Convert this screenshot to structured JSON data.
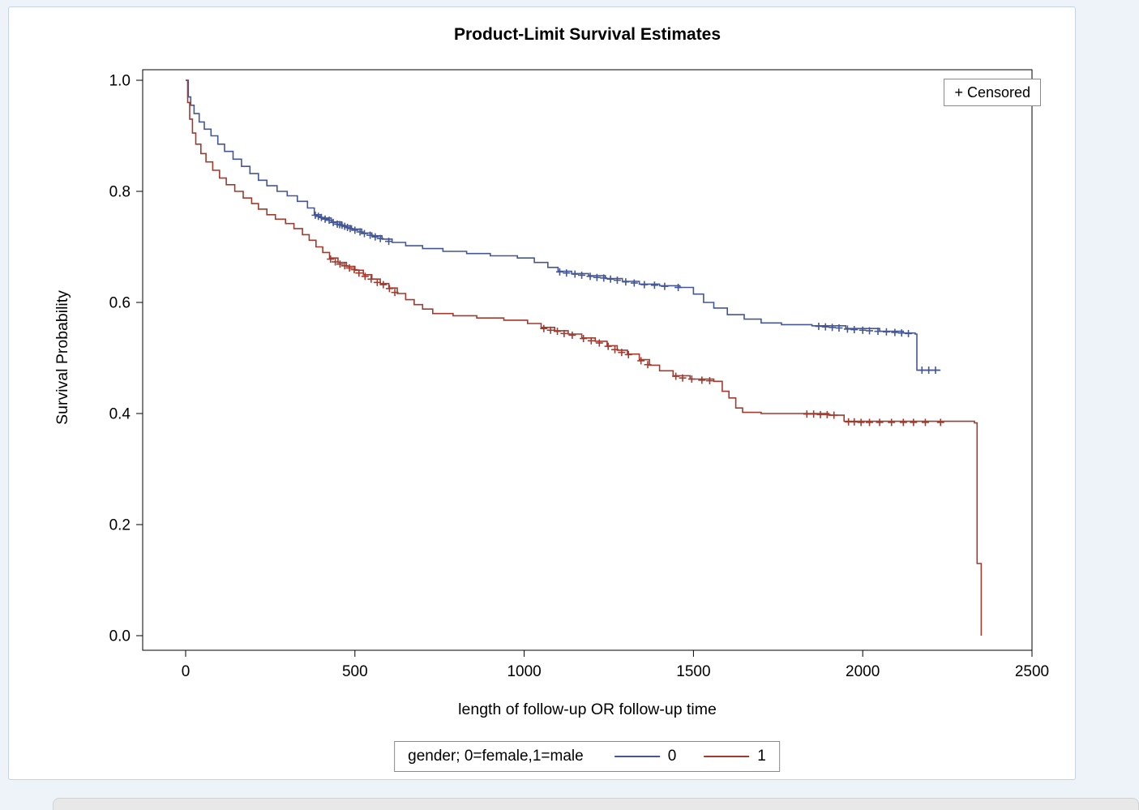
{
  "chart_data": {
    "type": "line",
    "subtype": "kaplan-meier-step-survival",
    "title": "Product-Limit Survival Estimates",
    "xlabel": "length of follow-up OR follow-up time",
    "ylabel": "Survival Probability",
    "xlim": [
      0,
      2500
    ],
    "ylim": [
      0.0,
      1.0
    ],
    "xticks": [
      0,
      500,
      1000,
      1500,
      2000,
      2500
    ],
    "yticks": [
      0.0,
      0.2,
      0.4,
      0.6,
      0.8,
      1.0
    ],
    "grid": false,
    "censored_legend": "+ Censored",
    "group_legend_title": "gender; 0=female,1=male",
    "series": [
      {
        "name": "0",
        "label": "0",
        "color": "#445694",
        "steps": [
          [
            0,
            1.0
          ],
          [
            8,
            0.97
          ],
          [
            15,
            0.955
          ],
          [
            25,
            0.94
          ],
          [
            40,
            0.925
          ],
          [
            55,
            0.912
          ],
          [
            75,
            0.9
          ],
          [
            95,
            0.885
          ],
          [
            115,
            0.872
          ],
          [
            140,
            0.858
          ],
          [
            165,
            0.845
          ],
          [
            190,
            0.832
          ],
          [
            215,
            0.82
          ],
          [
            240,
            0.81
          ],
          [
            270,
            0.8
          ],
          [
            300,
            0.792
          ],
          [
            330,
            0.782
          ],
          [
            360,
            0.77
          ],
          [
            380,
            0.758
          ],
          [
            400,
            0.752
          ],
          [
            430,
            0.745
          ],
          [
            460,
            0.738
          ],
          [
            490,
            0.732
          ],
          [
            520,
            0.725
          ],
          [
            550,
            0.72
          ],
          [
            580,
            0.714
          ],
          [
            610,
            0.708
          ],
          [
            650,
            0.702
          ],
          [
            700,
            0.697
          ],
          [
            760,
            0.692
          ],
          [
            830,
            0.688
          ],
          [
            900,
            0.684
          ],
          [
            980,
            0.68
          ],
          [
            1030,
            0.672
          ],
          [
            1070,
            0.663
          ],
          [
            1100,
            0.656
          ],
          [
            1140,
            0.652
          ],
          [
            1190,
            0.648
          ],
          [
            1240,
            0.643
          ],
          [
            1290,
            0.638
          ],
          [
            1340,
            0.633
          ],
          [
            1400,
            0.63
          ],
          [
            1460,
            0.627
          ],
          [
            1500,
            0.615
          ],
          [
            1530,
            0.6
          ],
          [
            1560,
            0.59
          ],
          [
            1600,
            0.578
          ],
          [
            1650,
            0.57
          ],
          [
            1700,
            0.563
          ],
          [
            1760,
            0.56
          ],
          [
            1850,
            0.558
          ],
          [
            1950,
            0.553
          ],
          [
            2050,
            0.548
          ],
          [
            2120,
            0.545
          ],
          [
            2155,
            0.543
          ],
          [
            2160,
            0.478
          ],
          [
            2230,
            0.478
          ]
        ],
        "censored": [
          [
            383,
            0.757
          ],
          [
            392,
            0.755
          ],
          [
            401,
            0.753
          ],
          [
            412,
            0.75
          ],
          [
            424,
            0.748
          ],
          [
            436,
            0.744
          ],
          [
            448,
            0.741
          ],
          [
            455,
            0.74
          ],
          [
            462,
            0.739
          ],
          [
            470,
            0.737
          ],
          [
            478,
            0.735
          ],
          [
            486,
            0.733
          ],
          [
            500,
            0.73
          ],
          [
            515,
            0.727
          ],
          [
            528,
            0.724
          ],
          [
            545,
            0.721
          ],
          [
            560,
            0.718
          ],
          [
            575,
            0.715
          ],
          [
            600,
            0.71
          ],
          [
            1105,
            0.655
          ],
          [
            1125,
            0.653
          ],
          [
            1150,
            0.651
          ],
          [
            1170,
            0.649
          ],
          [
            1195,
            0.647
          ],
          [
            1215,
            0.645
          ],
          [
            1235,
            0.644
          ],
          [
            1255,
            0.642
          ],
          [
            1275,
            0.64
          ],
          [
            1300,
            0.637
          ],
          [
            1325,
            0.635
          ],
          [
            1355,
            0.632
          ],
          [
            1385,
            0.631
          ],
          [
            1415,
            0.629
          ],
          [
            1455,
            0.627
          ],
          [
            1870,
            0.557
          ],
          [
            1890,
            0.556
          ],
          [
            1910,
            0.555
          ],
          [
            1930,
            0.554
          ],
          [
            1955,
            0.552
          ],
          [
            1975,
            0.551
          ],
          [
            2000,
            0.55
          ],
          [
            2020,
            0.549
          ],
          [
            2045,
            0.548
          ],
          [
            2070,
            0.547
          ],
          [
            2095,
            0.546
          ],
          [
            2115,
            0.545
          ],
          [
            2135,
            0.544
          ],
          [
            2175,
            0.478
          ],
          [
            2195,
            0.478
          ],
          [
            2215,
            0.478
          ]
        ]
      },
      {
        "name": "1",
        "label": "1",
        "color": "#A23A2E",
        "steps": [
          [
            0,
            1.0
          ],
          [
            6,
            0.96
          ],
          [
            12,
            0.93
          ],
          [
            20,
            0.905
          ],
          [
            30,
            0.885
          ],
          [
            45,
            0.868
          ],
          [
            60,
            0.853
          ],
          [
            80,
            0.838
          ],
          [
            100,
            0.824
          ],
          [
            120,
            0.812
          ],
          [
            145,
            0.8
          ],
          [
            170,
            0.788
          ],
          [
            195,
            0.778
          ],
          [
            215,
            0.768
          ],
          [
            240,
            0.758
          ],
          [
            265,
            0.75
          ],
          [
            295,
            0.742
          ],
          [
            320,
            0.733
          ],
          [
            345,
            0.722
          ],
          [
            365,
            0.712
          ],
          [
            385,
            0.7
          ],
          [
            405,
            0.69
          ],
          [
            425,
            0.68
          ],
          [
            450,
            0.672
          ],
          [
            475,
            0.665
          ],
          [
            500,
            0.658
          ],
          [
            525,
            0.65
          ],
          [
            550,
            0.642
          ],
          [
            575,
            0.634
          ],
          [
            600,
            0.626
          ],
          [
            625,
            0.616
          ],
          [
            650,
            0.605
          ],
          [
            675,
            0.596
          ],
          [
            700,
            0.588
          ],
          [
            730,
            0.58
          ],
          [
            790,
            0.576
          ],
          [
            860,
            0.572
          ],
          [
            940,
            0.568
          ],
          [
            1010,
            0.562
          ],
          [
            1050,
            0.555
          ],
          [
            1090,
            0.549
          ],
          [
            1130,
            0.543
          ],
          [
            1170,
            0.536
          ],
          [
            1210,
            0.53
          ],
          [
            1245,
            0.522
          ],
          [
            1275,
            0.514
          ],
          [
            1305,
            0.507
          ],
          [
            1340,
            0.497
          ],
          [
            1370,
            0.487
          ],
          [
            1400,
            0.477
          ],
          [
            1440,
            0.468
          ],
          [
            1490,
            0.462
          ],
          [
            1560,
            0.458
          ],
          [
            1585,
            0.44
          ],
          [
            1605,
            0.428
          ],
          [
            1625,
            0.41
          ],
          [
            1645,
            0.402
          ],
          [
            1700,
            0.4
          ],
          [
            1900,
            0.397
          ],
          [
            1945,
            0.386
          ],
          [
            2330,
            0.383
          ],
          [
            2338,
            0.13
          ],
          [
            2350,
            0.0
          ]
        ],
        "censored": [
          [
            428,
            0.678
          ],
          [
            442,
            0.673
          ],
          [
            456,
            0.669
          ],
          [
            470,
            0.666
          ],
          [
            484,
            0.662
          ],
          [
            498,
            0.659
          ],
          [
            512,
            0.653
          ],
          [
            530,
            0.647
          ],
          [
            548,
            0.642
          ],
          [
            566,
            0.636
          ],
          [
            584,
            0.632
          ],
          [
            602,
            0.625
          ],
          [
            618,
            0.618
          ],
          [
            1058,
            0.553
          ],
          [
            1078,
            0.55
          ],
          [
            1098,
            0.548
          ],
          [
            1118,
            0.544
          ],
          [
            1142,
            0.541
          ],
          [
            1175,
            0.535
          ],
          [
            1198,
            0.531
          ],
          [
            1222,
            0.527
          ],
          [
            1248,
            0.521
          ],
          [
            1268,
            0.515
          ],
          [
            1288,
            0.51
          ],
          [
            1308,
            0.506
          ],
          [
            1345,
            0.495
          ],
          [
            1365,
            0.488
          ],
          [
            1448,
            0.467
          ],
          [
            1468,
            0.464
          ],
          [
            1495,
            0.462
          ],
          [
            1525,
            0.46
          ],
          [
            1548,
            0.459
          ],
          [
            1835,
            0.399
          ],
          [
            1855,
            0.399
          ],
          [
            1875,
            0.398
          ],
          [
            1895,
            0.398
          ],
          [
            1915,
            0.397
          ],
          [
            1958,
            0.385
          ],
          [
            1975,
            0.385
          ],
          [
            1995,
            0.384
          ],
          [
            2020,
            0.384
          ],
          [
            2050,
            0.384
          ],
          [
            2085,
            0.384
          ],
          [
            2120,
            0.384
          ],
          [
            2150,
            0.384
          ],
          [
            2185,
            0.384
          ],
          [
            2230,
            0.384
          ]
        ]
      }
    ]
  }
}
